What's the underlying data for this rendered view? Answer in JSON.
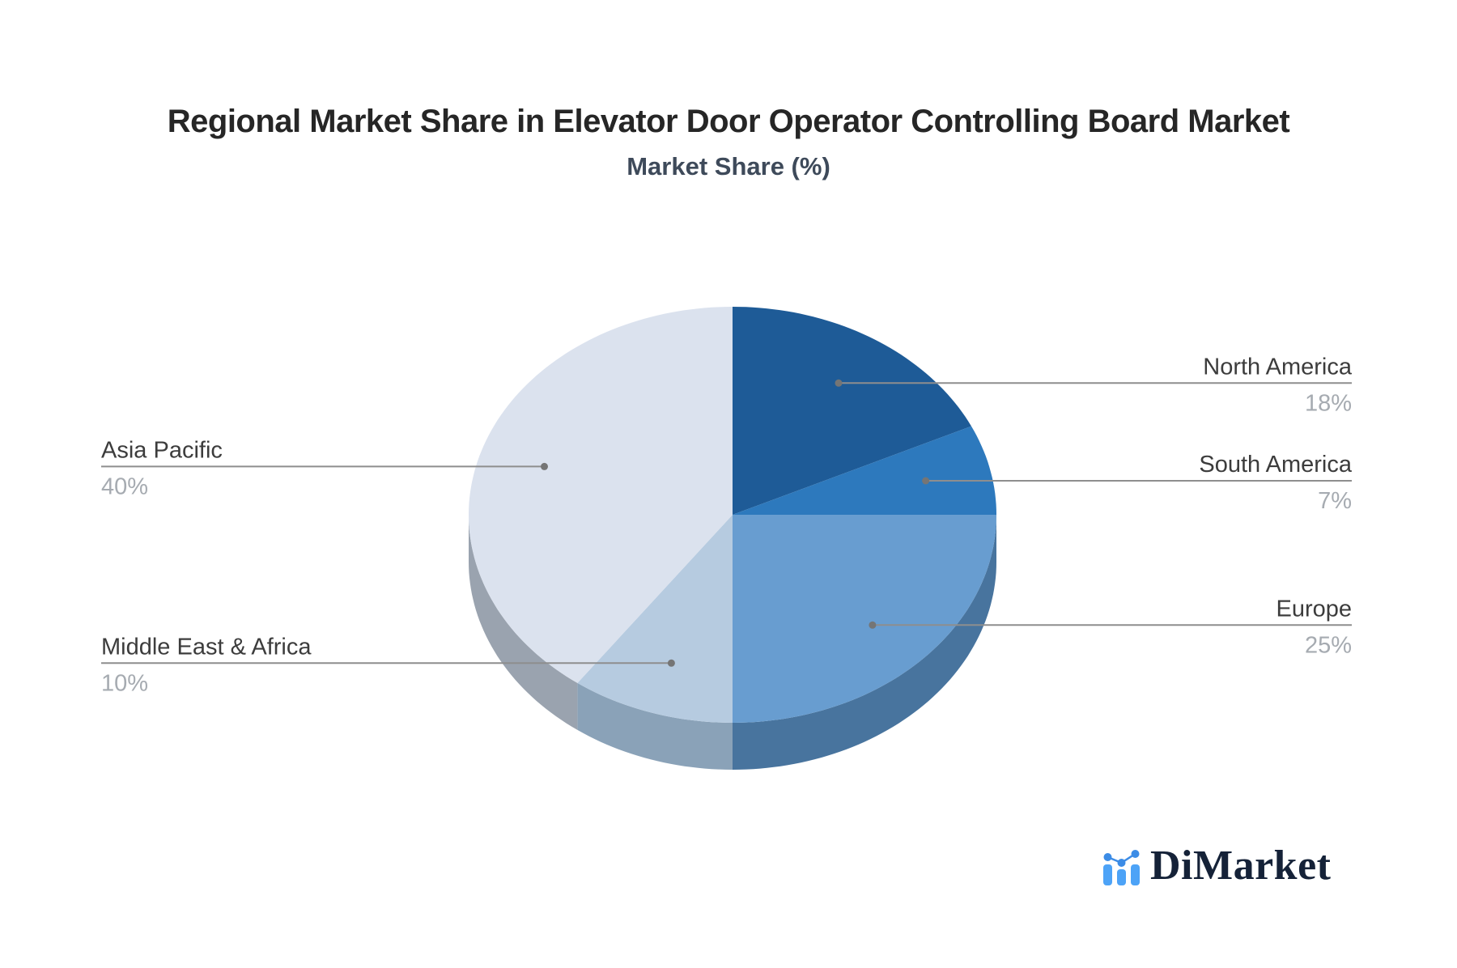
{
  "header": {
    "title": "Regional Market Share in Elevator Door Operator Controlling Board Market",
    "subtitle": "Market Share (%)"
  },
  "chart_data": {
    "type": "pie",
    "title": "Regional Market Share in Elevator Door Operator Controlling Board Market",
    "subtitle": "Market Share (%)",
    "unit": "%",
    "effect": "3d",
    "start_angle_deg": 0,
    "direction": "clockwise",
    "categories": [
      "North America",
      "South America",
      "Europe",
      "Middle East & Africa",
      "Asia Pacific"
    ],
    "values": [
      18,
      7,
      25,
      10,
      40
    ],
    "value_labels": [
      "18%",
      "7%",
      "25%",
      "10%",
      "40%"
    ],
    "colors": [
      "#1e5b97",
      "#2d79bd",
      "#689dd0",
      "#b6cbe0",
      "#dbe2ee"
    ],
    "side_colors": [
      "#154470",
      "#235d92",
      "#48749e",
      "#8aa2b8",
      "#9aa3af"
    ],
    "label_sides": [
      "right",
      "right",
      "right",
      "left",
      "left"
    ],
    "style": {
      "background": "#ffffff",
      "leader_line_color": "#8e8e8e",
      "leader_dot_color": "#757575",
      "name_color": "#3c3c3c",
      "pct_color": "#a6abb1"
    }
  },
  "logo": {
    "text": "DiMarket",
    "icon": "bar-line-chart-icon",
    "text_color": "#152238",
    "bar_color": "#4da3f7",
    "dot_color": "#3c8ce6"
  }
}
